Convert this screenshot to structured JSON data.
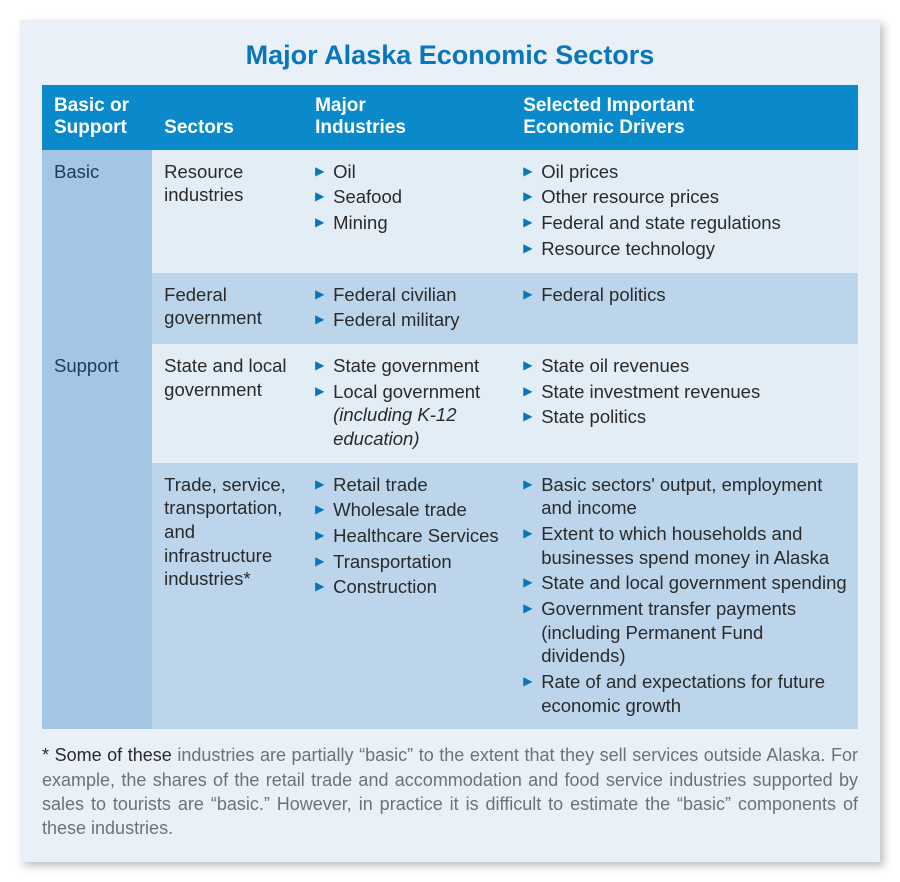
{
  "title": "Major Alaska Economic Sectors",
  "colors": {
    "accent": "#0776bc",
    "header_bg": "#0a8acb",
    "header_text": "#ffffff",
    "category_bg": "#a4c5e3",
    "row_light": "#e3edf6",
    "row_dark": "#bcd5eb",
    "card_bg": "#e9f0f8",
    "body_text": "#2a2a2a",
    "footnote_text": "#6d7278"
  },
  "columns": {
    "category": "Basic or Support",
    "sectors": "Sectors",
    "industries": "Major Industries",
    "drivers": "Selected Important Economic Drivers"
  },
  "categories": [
    {
      "label": "Basic",
      "rowspan": 2
    },
    {
      "label": "Support",
      "rowspan": 2
    }
  ],
  "rows": [
    {
      "shade": "a",
      "sector": "Resource industries",
      "industries": [
        "Oil",
        "Seafood",
        "Mining"
      ],
      "drivers": [
        "Oil prices",
        "Other resource prices",
        "Federal and state regulations",
        "Resource technology"
      ]
    },
    {
      "shade": "b",
      "sector": "Federal government",
      "industries": [
        "Federal civilian",
        "Federal military"
      ],
      "drivers": [
        "Federal politics"
      ]
    },
    {
      "shade": "a",
      "sector": "State and local government",
      "industries": [
        "State government",
        "Local government (including K-12 education)"
      ],
      "industries_italic_suffix": {
        "1": "(including K-12 education)"
      },
      "drivers": [
        "State oil revenues",
        "State investment revenues",
        "State politics"
      ]
    },
    {
      "shade": "b",
      "sector": "Trade, service, transportation, and infrastructure industries*",
      "industries": [
        "Retail trade",
        "Wholesale trade",
        "Healthcare Services",
        "Transportation",
        "Construction"
      ],
      "drivers": [
        "Basic sectors' output, employment and income",
        "Extent to which households and businesses spend money in Alaska",
        "State and local government spending",
        "Government transfer payments (including Permanent Fund dividends)",
        "Rate of and expectations for future economic growth"
      ]
    }
  ],
  "footnote": {
    "lead": "* Some of these",
    "rest": " industries are partially “basic” to the extent that they sell services outside Alaska. For example, the shares of the retail trade and accommodation and food service industries supported by sales to tourists are “basic.” However, in practice it is difficult to estimate the “basic” components of these industries."
  }
}
